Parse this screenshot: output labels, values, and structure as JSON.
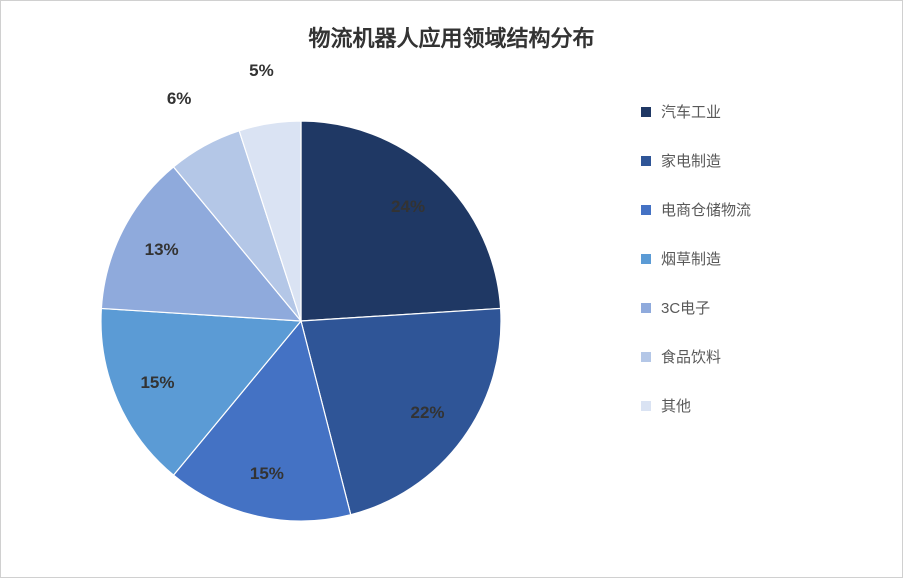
{
  "chart": {
    "type": "pie",
    "title": "物流机器人应用领域结构分布",
    "title_fontsize": 22,
    "title_color": "#333333",
    "background_color": "#ffffff",
    "label_fontsize": 17,
    "label_color": "#333333",
    "legend_fontsize": 15,
    "legend_color": "#595959",
    "start_angle_deg": -90,
    "slices": [
      {
        "label": "汽车工业",
        "value": 24,
        "percent_text": "24%",
        "color": "#1f3864"
      },
      {
        "label": "家电制造",
        "value": 22,
        "percent_text": "22%",
        "color": "#2f5597"
      },
      {
        "label": "电商仓储物流",
        "value": 15,
        "percent_text": "15%",
        "color": "#4472c4"
      },
      {
        "label": "烟草制造",
        "value": 15,
        "percent_text": "15%",
        "color": "#5b9bd5"
      },
      {
        "label": "3C电子",
        "value": 13,
        "percent_text": "13%",
        "color": "#8faadc"
      },
      {
        "label": "食品饮料",
        "value": 6,
        "percent_text": "6%",
        "color": "#b4c7e7"
      },
      {
        "label": "其他",
        "value": 5,
        "percent_text": "5%",
        "color": "#dae3f3"
      }
    ],
    "label_radius_rel": 0.68,
    "inside_threshold_pct": 8,
    "outside_radius_rel": 1.1
  }
}
